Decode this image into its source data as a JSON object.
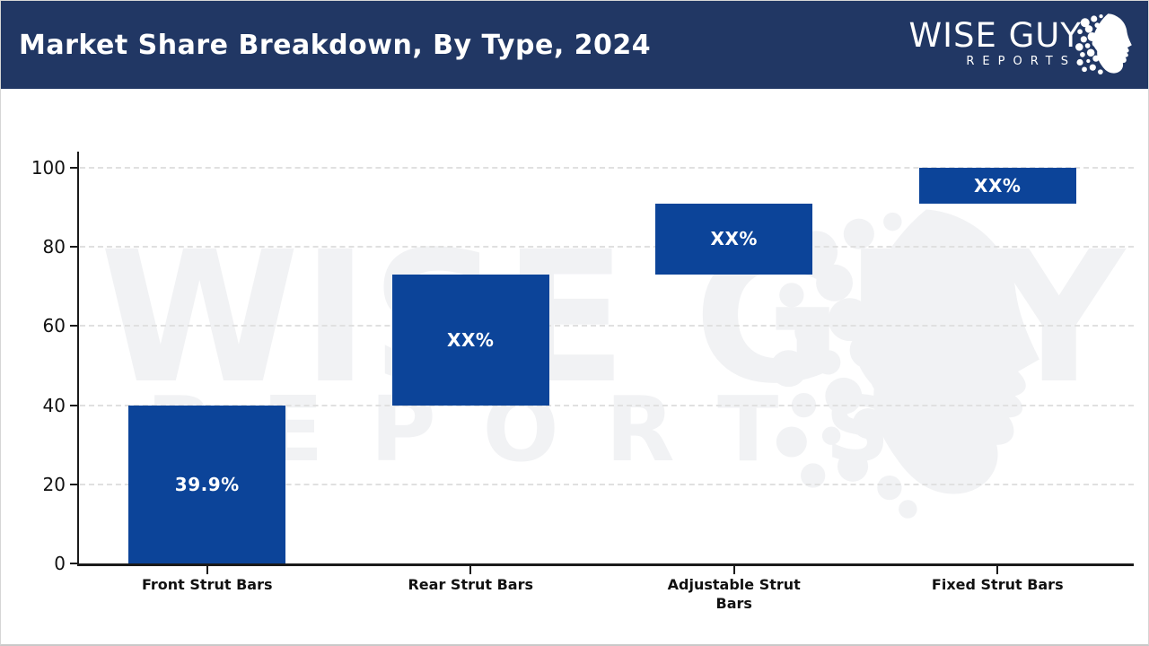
{
  "header": {
    "title": "Market Share Breakdown, By Type, 2024"
  },
  "logo": {
    "wordmark": "WISE GUY",
    "sub": "REPORTS"
  },
  "watermark": {
    "wordmark": "WISE GUY",
    "sub": "REPORTS"
  },
  "chart_data": {
    "type": "bar",
    "subtype": "waterfall",
    "title": "Market Share Breakdown, By Type, 2024",
    "categories": [
      "Front Strut Bars",
      "Rear Strut Bars",
      "Adjustable Strut Bars",
      "Fixed Strut Bars"
    ],
    "segments": [
      {
        "label": "39.9%",
        "start": 0,
        "end": 39.9
      },
      {
        "label": "XX%",
        "start": 39.9,
        "end": 73
      },
      {
        "label": "XX%",
        "start": 73,
        "end": 91
      },
      {
        "label": "XX%",
        "start": 91,
        "end": 100
      }
    ],
    "yticks": [
      0,
      20,
      40,
      60,
      80,
      100
    ],
    "ylim": [
      0,
      104
    ],
    "xlabel": "",
    "ylabel": "",
    "bar_color": "#0c4499",
    "grid": "horizontal-dashed",
    "legend": "none"
  },
  "colors": {
    "header_bg": "#213764",
    "bar": "#0c4499",
    "gridline": "#e0e0e0",
    "axis": "#1a1a1a",
    "watermark": "#f1f2f4"
  }
}
